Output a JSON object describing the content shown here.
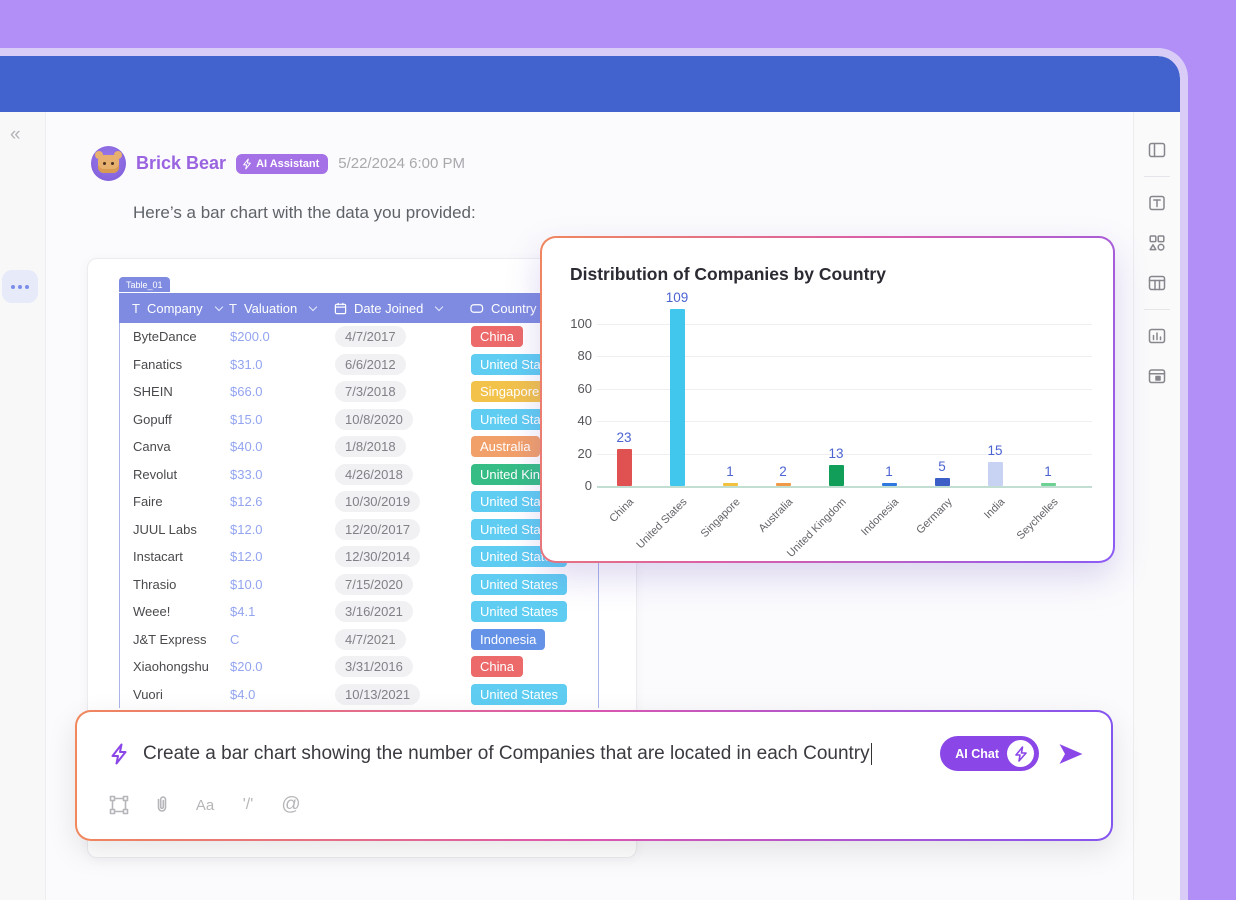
{
  "message": {
    "author": "Brick Bear",
    "badge": "AI Assistant",
    "timestamp": "5/22/2024 6:00 PM",
    "text": "Here’s a bar chart with the data you provided:"
  },
  "table": {
    "tab": "Table_01",
    "columns": [
      {
        "label": "Company",
        "type_icon": "text-type-icon",
        "sortable": true
      },
      {
        "label": "Valuation",
        "type_icon": "text-type-icon",
        "sortable": true
      },
      {
        "label": "Date Joined",
        "type_icon": "calendar-type-icon",
        "sortable": true
      },
      {
        "label": "Country",
        "type_icon": "select-type-icon",
        "sortable": false
      }
    ],
    "rows": [
      {
        "company": "ByteDance",
        "valuation": "$200.0",
        "date": "4/7/2017",
        "country": "China",
        "tag_color": "#ec6a6a"
      },
      {
        "company": "Fanatics",
        "valuation": "$31.0",
        "date": "6/6/2012",
        "country": "United States",
        "tag_color": "#5fcdf2"
      },
      {
        "company": "SHEIN",
        "valuation": "$66.0",
        "date": "7/3/2018",
        "country": "Singapore",
        "tag_color": "#f2c24b"
      },
      {
        "company": "Gopuff",
        "valuation": "$15.0",
        "date": "10/8/2020",
        "country": "United States",
        "tag_color": "#5fcdf2"
      },
      {
        "company": "Canva",
        "valuation": "$40.0",
        "date": "1/8/2018",
        "country": "Australia",
        "tag_color": "#f2a06a"
      },
      {
        "company": "Revolut",
        "valuation": "$33.0",
        "date": "4/26/2018",
        "country": "United Kingdom",
        "tag_color": "#35bd85"
      },
      {
        "company": "Faire",
        "valuation": "$12.6",
        "date": "10/30/2019",
        "country": "United States",
        "tag_color": "#5fcdf2"
      },
      {
        "company": "JUUL Labs",
        "valuation": "$12.0",
        "date": "12/20/2017",
        "country": "United States",
        "tag_color": "#5fcdf2"
      },
      {
        "company": "Instacart",
        "valuation": "$12.0",
        "date": "12/30/2014",
        "country": "United States",
        "tag_color": "#5fcdf2"
      },
      {
        "company": "Thrasio",
        "valuation": "$10.0",
        "date": "7/15/2020",
        "country": "United States",
        "tag_color": "#5fcdf2"
      },
      {
        "company": "Weee!",
        "valuation": "$4.1",
        "date": "3/16/2021",
        "country": "United States",
        "tag_color": "#5fcdf2"
      },
      {
        "company": "J&T Express",
        "valuation": "C",
        "date": "4/7/2021",
        "country": "Indonesia",
        "tag_color": "#6492e6"
      },
      {
        "company": "Xiaohongshu",
        "valuation": "$20.0",
        "date": "3/31/2016",
        "country": "China",
        "tag_color": "#ec6a6a"
      },
      {
        "company": "Vuori",
        "valuation": "$4.0",
        "date": "10/13/2021",
        "country": "United States",
        "tag_color": "#5fcdf2"
      }
    ]
  },
  "chart_data": {
    "type": "bar",
    "title": "Distribution of Companies by Country",
    "categories": [
      "China",
      "United States",
      "Singapore",
      "Australia",
      "United Kingdom",
      "Indonesia",
      "Germany",
      "India",
      "Seychelles"
    ],
    "values": [
      23,
      109,
      1,
      2,
      13,
      1,
      5,
      15,
      1
    ],
    "bar_colors": [
      "#e05252",
      "#41c7ed",
      "#f2c23e",
      "#f09a47",
      "#109e58",
      "#2e78e0",
      "#3b5fc6",
      "#c8d2f2",
      "#6dd193"
    ],
    "xlabel": "",
    "ylabel": "",
    "yticks": [
      0,
      20,
      40,
      60,
      80,
      100
    ],
    "ylim": [
      0,
      100
    ],
    "grid": true,
    "value_labels": true,
    "legend_position": "none"
  },
  "composer": {
    "text": "Create a bar chart showing the number of Companies that are located in each Country",
    "ai_chat_label": "AI Chat",
    "toolbar_icons": [
      "frame-select-icon",
      "attachment-icon",
      "text-style-icon",
      "slash-command-icon",
      "mention-icon"
    ]
  },
  "left_rail": {
    "icons": [
      "collapse-sidebar-icon",
      "more-options-icon"
    ]
  },
  "right_toolbar": {
    "icons": [
      "panel-layout-icon",
      "text-block-icon",
      "shapes-icon",
      "table-icon",
      "chart-icon",
      "calendar-icon"
    ]
  },
  "colors": {
    "background_purple": "#b28ff7",
    "window_frame": "#d9cdf8",
    "header_blue": "#4263ce",
    "table_header": "#7e8be0",
    "accent_purple": "#8b46e8",
    "author_name": "#9a63e0",
    "value_label_blue": "#4c63d2"
  }
}
